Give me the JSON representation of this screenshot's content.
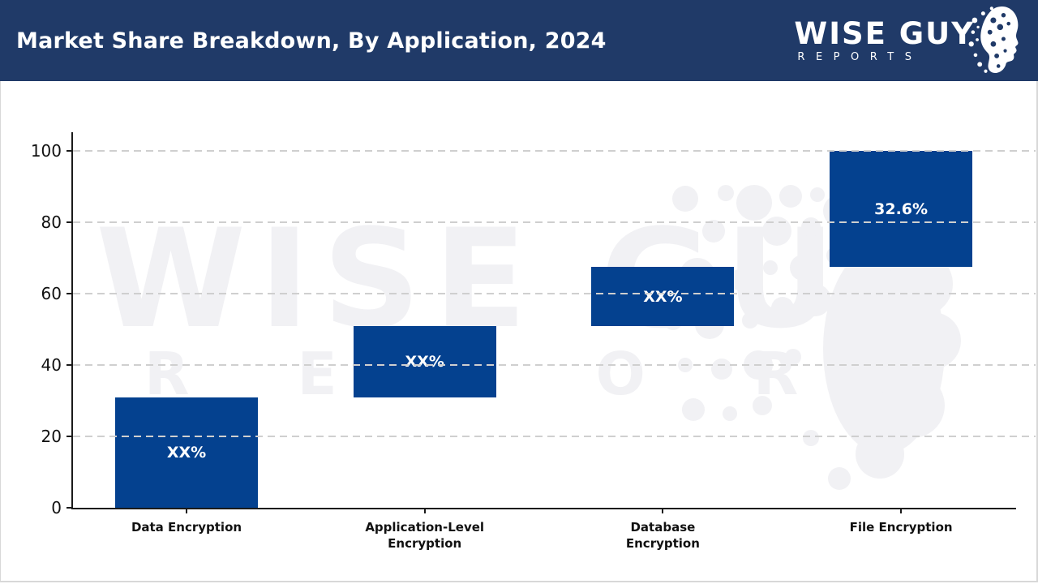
{
  "header": {
    "title": "Market Share Breakdown, By Application, 2024",
    "logo": {
      "line1": "WISE GUY",
      "line2": "REPORTS"
    },
    "bg_color": "#203a68"
  },
  "watermark": {
    "line1": "WISE GUY",
    "line2": "R E P O R T S"
  },
  "chart_data": {
    "type": "bar",
    "subtype": "floating-waterfall",
    "title": "Market Share Breakdown, By Application, 2024",
    "xlabel": "",
    "ylabel": "",
    "ylim": [
      0,
      100
    ],
    "yticks": [
      0,
      20,
      40,
      60,
      80,
      100
    ],
    "grid": "horizontal-dashed",
    "legend": "none",
    "categories": [
      "Data Encryption",
      "Application-Level\nEncryption",
      "Database\nEncryption",
      "File Encryption"
    ],
    "series": [
      {
        "name": "Market Share (%)",
        "segments": [
          {
            "category": "Data Encryption",
            "start": 0,
            "end": 31,
            "label": "XX%"
          },
          {
            "category": "Application-Level Encryption",
            "start": 31,
            "end": 51,
            "label": "XX%"
          },
          {
            "category": "Database Encryption",
            "start": 51,
            "end": 67.4,
            "label": "XX%"
          },
          {
            "category": "File Encryption",
            "start": 67.4,
            "end": 100,
            "label": "32.6%"
          }
        ]
      }
    ],
    "bar_color": "#04418f",
    "bar_label_color": "#ffffff",
    "axis_color": "#1a1a1a",
    "grid_color": "#cfcfcf",
    "watermark_color": "#f1f1f4"
  }
}
